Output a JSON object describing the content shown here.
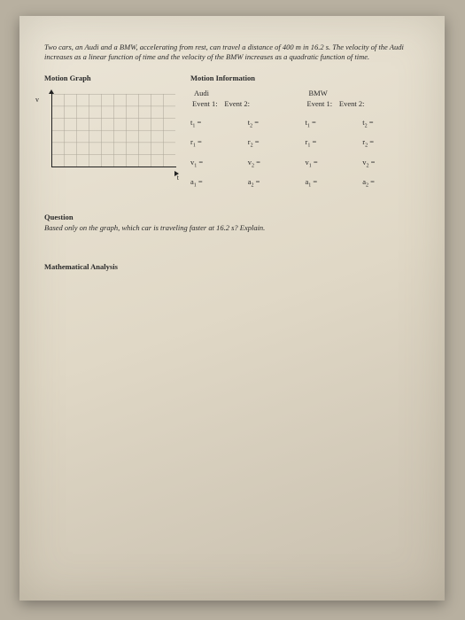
{
  "problem_text": "Two cars, an Audi and a BMW, accelerating from rest, can travel a distance of 400 m in 16.2 s. The velocity of the Audi increases as a linear function of time and the velocity of the BMW increases as a quadratic function of time.",
  "headings": {
    "motion_graph": "Motion Graph",
    "motion_info": "Motion Information"
  },
  "graph": {
    "y_axis": "v",
    "x_axis": "t",
    "grid_cols": 10,
    "grid_rows": 6,
    "grid_color": "#7a7468",
    "axis_color": "#222222"
  },
  "cars": {
    "audi": "Audi",
    "bmw": "BMW"
  },
  "events": {
    "e1": "Event 1:",
    "e2": "Event 2:"
  },
  "vars": {
    "t1": "t",
    "t2": "t",
    "r1": "r",
    "r2": "r",
    "v1": "v",
    "v2": "v",
    "a1": "a",
    "a2": "a",
    "s1": "1",
    "s2": "2",
    "eq": " ="
  },
  "question": {
    "title": "Question",
    "text": "Based only on the graph, which car is traveling faster at 16.2 s? Explain."
  },
  "math_title": "Mathematical Analysis",
  "colors": {
    "paper_light": "#ece6d8",
    "paper_dark": "#c8bfae",
    "bg": "#b8b0a0",
    "text": "#2a2a2a"
  }
}
